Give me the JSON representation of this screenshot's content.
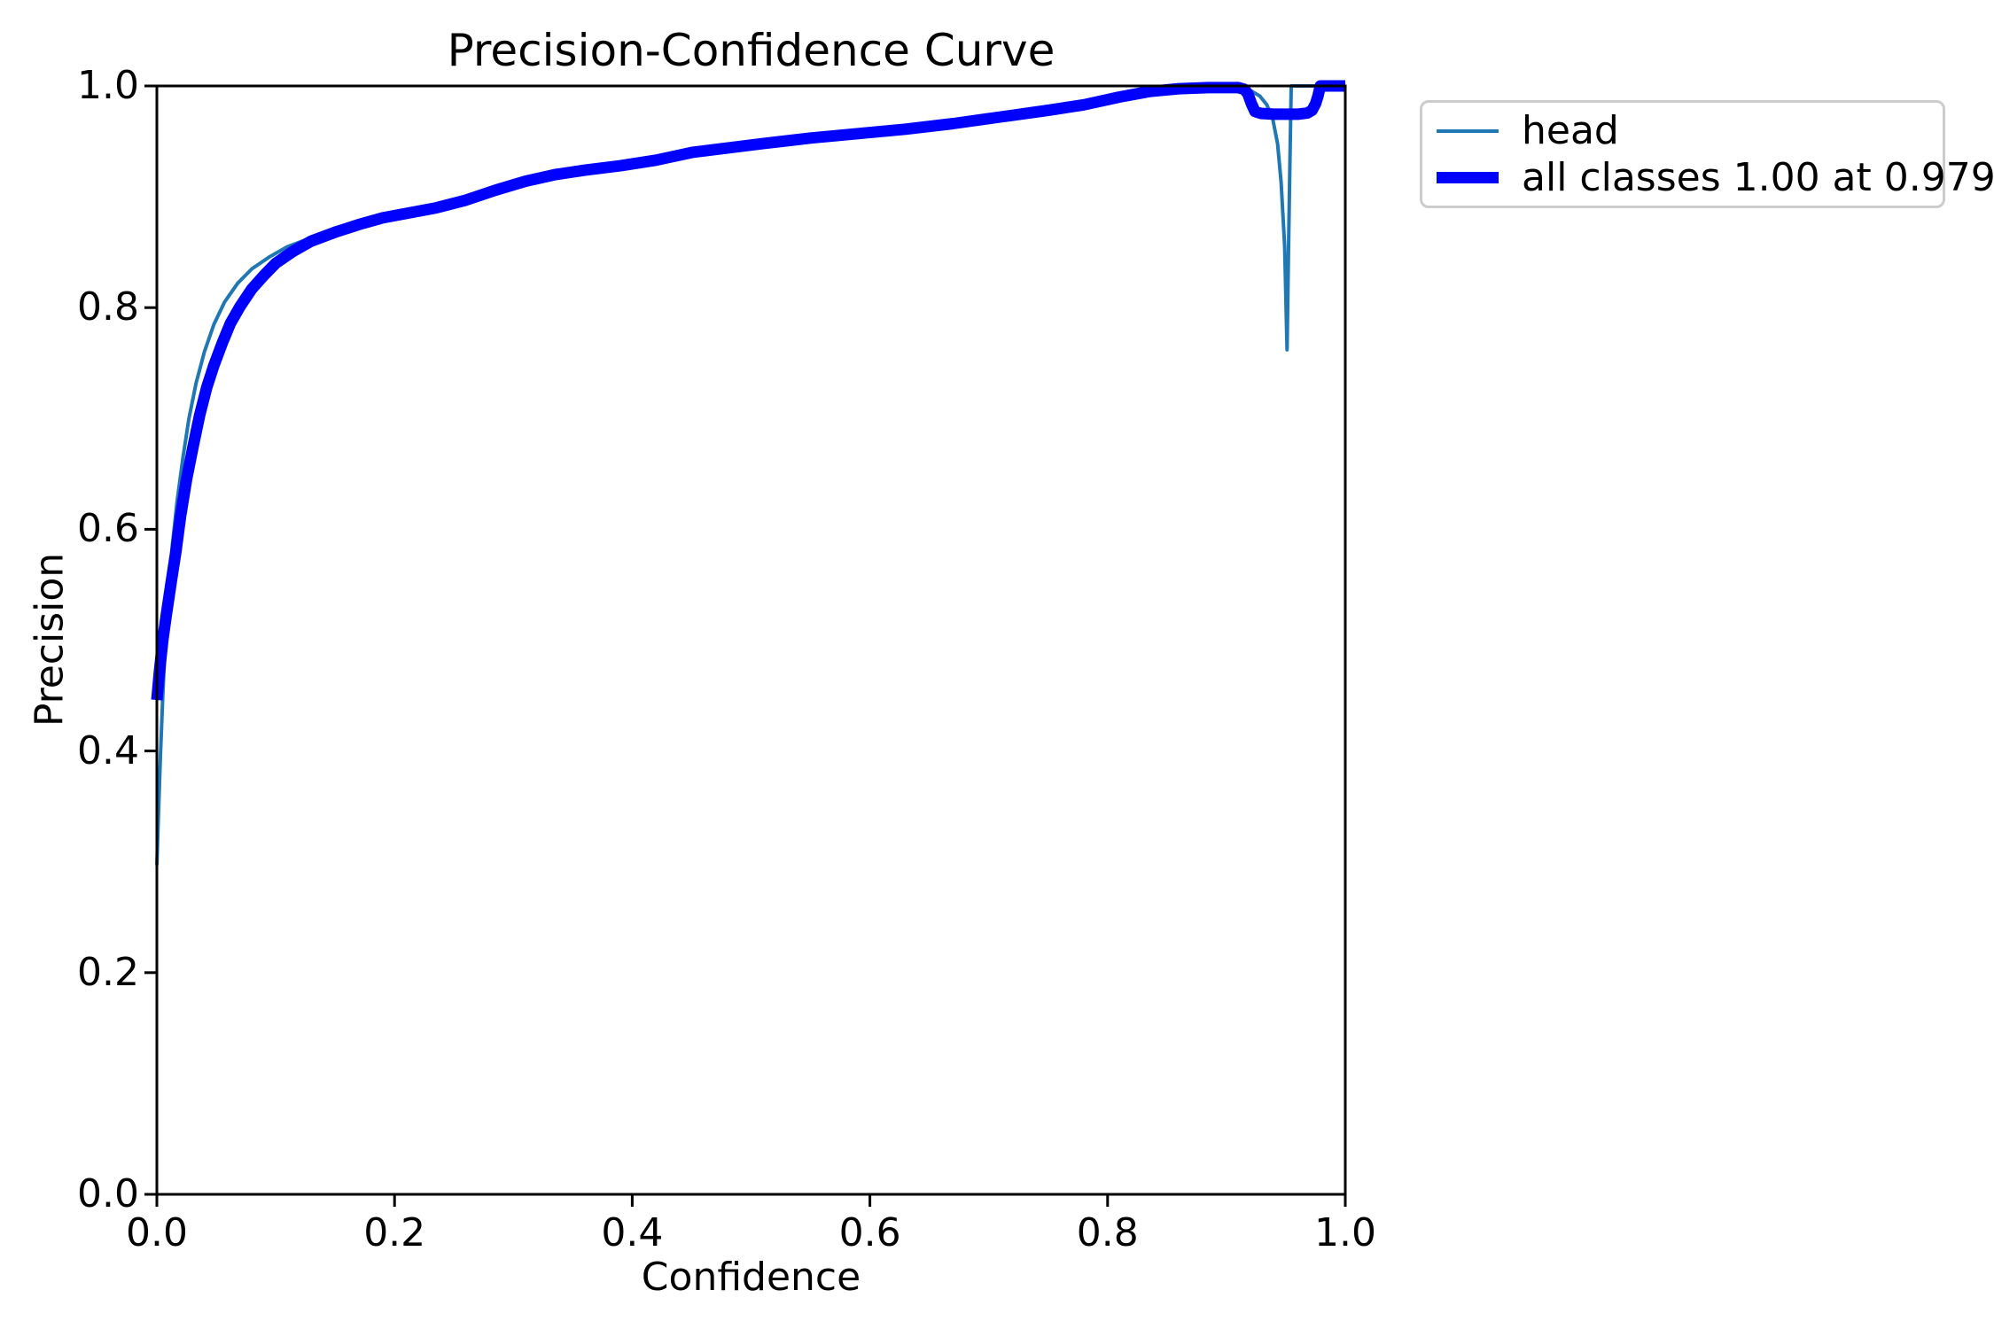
{
  "figure": {
    "title": "Precision-Confidence Curve",
    "xlabel": "Confidence",
    "ylabel": "Precision"
  },
  "legend": {
    "items": [
      {
        "label": "head",
        "color": "#1f77b4",
        "thickness": 4
      },
      {
        "label": "all classes 1.00 at 0.979",
        "color": "#0000ff",
        "thickness": 13
      }
    ]
  },
  "chart_data": {
    "type": "line",
    "title": "Precision-Confidence Curve",
    "xlabel": "Confidence",
    "ylabel": "Precision",
    "xlim": [
      0.0,
      1.0
    ],
    "ylim": [
      0.0,
      1.0
    ],
    "grid": false,
    "legend_position": "upper right, outside plot",
    "x_ticks": {
      "values": [
        0.0,
        0.2,
        0.4,
        0.6,
        0.8,
        1.0
      ],
      "labels": [
        "0.0",
        "0.2",
        "0.4",
        "0.6",
        "0.8",
        "1.0"
      ]
    },
    "y_ticks": {
      "values": [
        0.0,
        0.2,
        0.4,
        0.6,
        0.8,
        1.0
      ],
      "labels": [
        "0.0",
        "0.2",
        "0.4",
        "0.6",
        "0.8",
        "1.0"
      ]
    },
    "series": [
      {
        "name": "head",
        "legend_label": "head",
        "color": "#1f77b4",
        "line_width": 4,
        "points": [
          [
            0.0,
            0.297
          ],
          [
            0.001,
            0.33
          ],
          [
            0.003,
            0.395
          ],
          [
            0.005,
            0.45
          ],
          [
            0.007,
            0.497
          ],
          [
            0.01,
            0.545
          ],
          [
            0.013,
            0.585
          ],
          [
            0.017,
            0.625
          ],
          [
            0.022,
            0.665
          ],
          [
            0.027,
            0.7
          ],
          [
            0.033,
            0.732
          ],
          [
            0.04,
            0.76
          ],
          [
            0.048,
            0.785
          ],
          [
            0.057,
            0.805
          ],
          [
            0.068,
            0.822
          ],
          [
            0.08,
            0.835
          ],
          [
            0.095,
            0.846
          ],
          [
            0.11,
            0.855
          ],
          [
            0.13,
            0.863
          ],
          [
            0.15,
            0.87
          ],
          [
            0.17,
            0.877
          ],
          [
            0.19,
            0.882
          ],
          [
            0.21,
            0.886
          ],
          [
            0.235,
            0.891
          ],
          [
            0.26,
            0.898
          ],
          [
            0.285,
            0.907
          ],
          [
            0.31,
            0.915
          ],
          [
            0.335,
            0.921
          ],
          [
            0.36,
            0.925
          ],
          [
            0.39,
            0.929
          ],
          [
            0.42,
            0.934
          ],
          [
            0.45,
            0.941
          ],
          [
            0.48,
            0.945
          ],
          [
            0.51,
            0.948
          ],
          [
            0.55,
            0.953
          ],
          [
            0.59,
            0.957
          ],
          [
            0.63,
            0.961
          ],
          [
            0.67,
            0.966
          ],
          [
            0.71,
            0.972
          ],
          [
            0.75,
            0.978
          ],
          [
            0.78,
            0.983
          ],
          [
            0.81,
            0.99
          ],
          [
            0.835,
            0.995
          ],
          [
            0.86,
            0.9975
          ],
          [
            0.885,
            0.9985
          ],
          [
            0.912,
            0.998
          ],
          [
            0.92,
            0.996
          ],
          [
            0.928,
            0.991
          ],
          [
            0.934,
            0.983
          ],
          [
            0.939,
            0.97
          ],
          [
            0.943,
            0.948
          ],
          [
            0.946,
            0.913
          ],
          [
            0.949,
            0.855
          ],
          [
            0.951,
            0.762
          ],
          [
            0.9522,
            0.85
          ],
          [
            0.9535,
            0.935
          ],
          [
            0.9545,
            1.0
          ],
          [
            1.0,
            1.0
          ]
        ]
      },
      {
        "name": "all classes",
        "legend_label": "all classes 1.00 at 0.979",
        "color": "#0000ff",
        "line_width": 13,
        "points": [
          [
            0.0,
            0.446
          ],
          [
            0.002,
            0.47
          ],
          [
            0.005,
            0.5
          ],
          [
            0.008,
            0.523
          ],
          [
            0.012,
            0.552
          ],
          [
            0.016,
            0.58
          ],
          [
            0.02,
            0.612
          ],
          [
            0.025,
            0.645
          ],
          [
            0.03,
            0.672
          ],
          [
            0.036,
            0.703
          ],
          [
            0.042,
            0.728
          ],
          [
            0.048,
            0.748
          ],
          [
            0.055,
            0.768
          ],
          [
            0.062,
            0.786
          ],
          [
            0.07,
            0.801
          ],
          [
            0.08,
            0.817
          ],
          [
            0.09,
            0.829
          ],
          [
            0.1,
            0.84
          ],
          [
            0.115,
            0.851
          ],
          [
            0.13,
            0.86
          ],
          [
            0.15,
            0.868
          ],
          [
            0.17,
            0.875
          ],
          [
            0.19,
            0.881
          ],
          [
            0.21,
            0.885
          ],
          [
            0.235,
            0.89
          ],
          [
            0.26,
            0.897
          ],
          [
            0.285,
            0.906
          ],
          [
            0.31,
            0.914
          ],
          [
            0.335,
            0.92
          ],
          [
            0.36,
            0.924
          ],
          [
            0.39,
            0.928
          ],
          [
            0.42,
            0.933
          ],
          [
            0.45,
            0.94
          ],
          [
            0.48,
            0.944
          ],
          [
            0.51,
            0.948
          ],
          [
            0.55,
            0.953
          ],
          [
            0.59,
            0.957
          ],
          [
            0.63,
            0.961
          ],
          [
            0.67,
            0.966
          ],
          [
            0.71,
            0.972
          ],
          [
            0.75,
            0.978
          ],
          [
            0.78,
            0.983
          ],
          [
            0.81,
            0.99
          ],
          [
            0.835,
            0.995
          ],
          [
            0.86,
            0.9975
          ],
          [
            0.885,
            0.9985
          ],
          [
            0.91,
            0.9985
          ],
          [
            0.915,
            0.997
          ],
          [
            0.918,
            0.993
          ],
          [
            0.921,
            0.984
          ],
          [
            0.924,
            0.977
          ],
          [
            0.929,
            0.9752
          ],
          [
            0.94,
            0.9745
          ],
          [
            0.96,
            0.9745
          ],
          [
            0.968,
            0.9755
          ],
          [
            0.972,
            0.978
          ],
          [
            0.975,
            0.984
          ],
          [
            0.977,
            0.991
          ],
          [
            0.979,
            1.0
          ],
          [
            1.0,
            1.0
          ]
        ]
      }
    ]
  }
}
